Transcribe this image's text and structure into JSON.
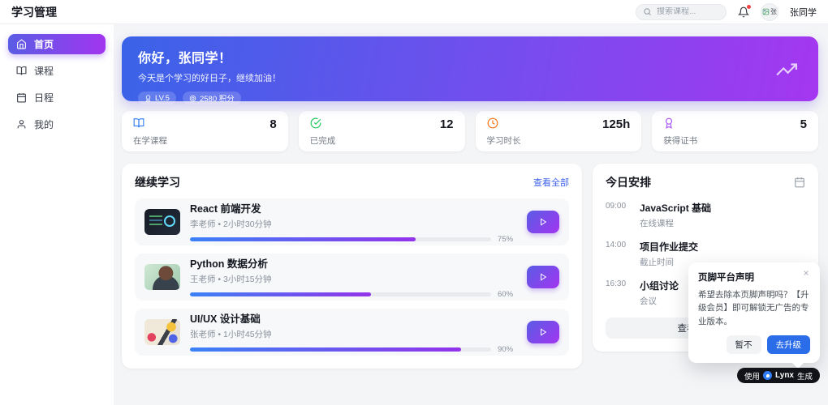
{
  "app": {
    "title": "学习管理"
  },
  "header": {
    "search_placeholder": "搜索课程...",
    "user_name": "张同学",
    "avatar_alt": "张"
  },
  "sidebar": {
    "items": [
      {
        "label": "首页",
        "icon": "home-icon",
        "active": true
      },
      {
        "label": "课程",
        "icon": "book-icon",
        "active": false
      },
      {
        "label": "日程",
        "icon": "calendar-icon",
        "active": false
      },
      {
        "label": "我的",
        "icon": "user-icon",
        "active": false
      }
    ]
  },
  "banner": {
    "greeting": "你好，张同学！",
    "subtitle": "今天是个学习的好日子，继续加油！",
    "level_badge": "LV.5",
    "points_badge": "2580 积分",
    "gradient_start": "#3a63e8",
    "gradient_end": "#a437f0"
  },
  "stats": [
    {
      "icon": "book-icon",
      "color": "#3b82f6",
      "value": "8",
      "label": "在学课程"
    },
    {
      "icon": "check-circle-icon",
      "color": "#22c55e",
      "value": "12",
      "label": "已完成"
    },
    {
      "icon": "clock-icon",
      "color": "#f97316",
      "value": "125h",
      "label": "学习时长"
    },
    {
      "icon": "award-icon",
      "color": "#a855f7",
      "value": "5",
      "label": "获得证书"
    }
  ],
  "continue_learning": {
    "title": "继续学习",
    "view_all": "查看全部",
    "courses": [
      {
        "title": "React 前端开发",
        "meta": "李老师 • 2小时30分钟",
        "progress": 75,
        "progress_label": "75%"
      },
      {
        "title": "Python 数据分析",
        "meta": "王老师 • 3小时15分钟",
        "progress": 60,
        "progress_label": "60%"
      },
      {
        "title": "UI/UX 设计基础",
        "meta": "张老师 • 1小时45分钟",
        "progress": 90,
        "progress_label": "90%"
      }
    ]
  },
  "today_schedule": {
    "title": "今日安排",
    "items": [
      {
        "time": "09:00",
        "title": "JavaScript 基础",
        "type": "在线课程"
      },
      {
        "time": "14:00",
        "title": "项目作业提交",
        "type": "截止时间"
      },
      {
        "time": "16:30",
        "title": "小组讨论",
        "type": "会议"
      }
    ],
    "view_full_button": "查看完整日程"
  },
  "footer_toast": {
    "title": "页脚平台声明",
    "message": "希望去除本页脚声明吗？【升级会员】即可解锁无广告的专业版本。",
    "dismiss_label": "暂不",
    "upgrade_label": "去升级",
    "upgrade_color": "#2b6ce8"
  },
  "lynx_badge": {
    "prefix": "使用",
    "brand": "Lynx",
    "suffix": "生成"
  }
}
